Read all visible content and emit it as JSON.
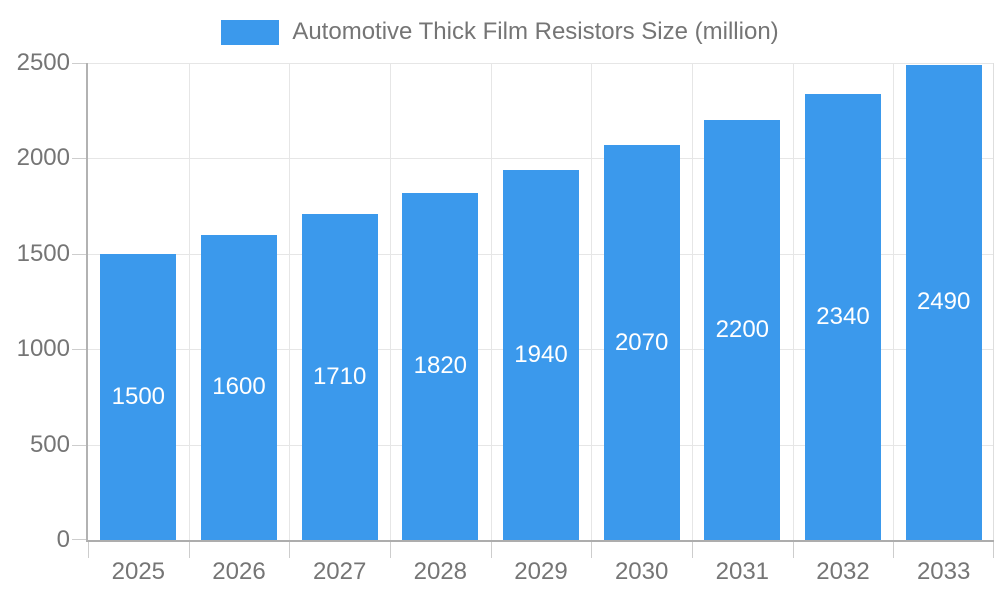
{
  "legend": {
    "label": "Automotive Thick Film Resistors Size (million)"
  },
  "chart_data": {
    "type": "bar",
    "title": "Automotive Thick Film Resistors Size (million)",
    "series_name": "Automotive Thick Film Resistors Size (million)",
    "categories": [
      "2025",
      "2026",
      "2027",
      "2028",
      "2029",
      "2030",
      "2031",
      "2032",
      "2033"
    ],
    "values": [
      1500,
      1600,
      1710,
      1820,
      1940,
      2070,
      2200,
      2340,
      2490
    ],
    "value_labels": [
      "1500",
      "1600",
      "1710",
      "1820",
      "1940",
      "2070",
      "2200",
      "2340",
      "2490"
    ],
    "xlabel": "",
    "ylabel": "",
    "ylim": [
      0,
      2500
    ],
    "y_ticks": [
      0,
      500,
      1000,
      1500,
      2000,
      2500
    ],
    "grid": true,
    "legend_position": "top",
    "colors": {
      "bar": "#3B99EC",
      "value_label_text": "#FFFFFF",
      "axis_text": "#757575",
      "gridline": "#E6E6E6",
      "right_border": "#DEDEDE",
      "axis_line": "#ADADAD",
      "tick_mark": "#CDCDCD"
    }
  }
}
